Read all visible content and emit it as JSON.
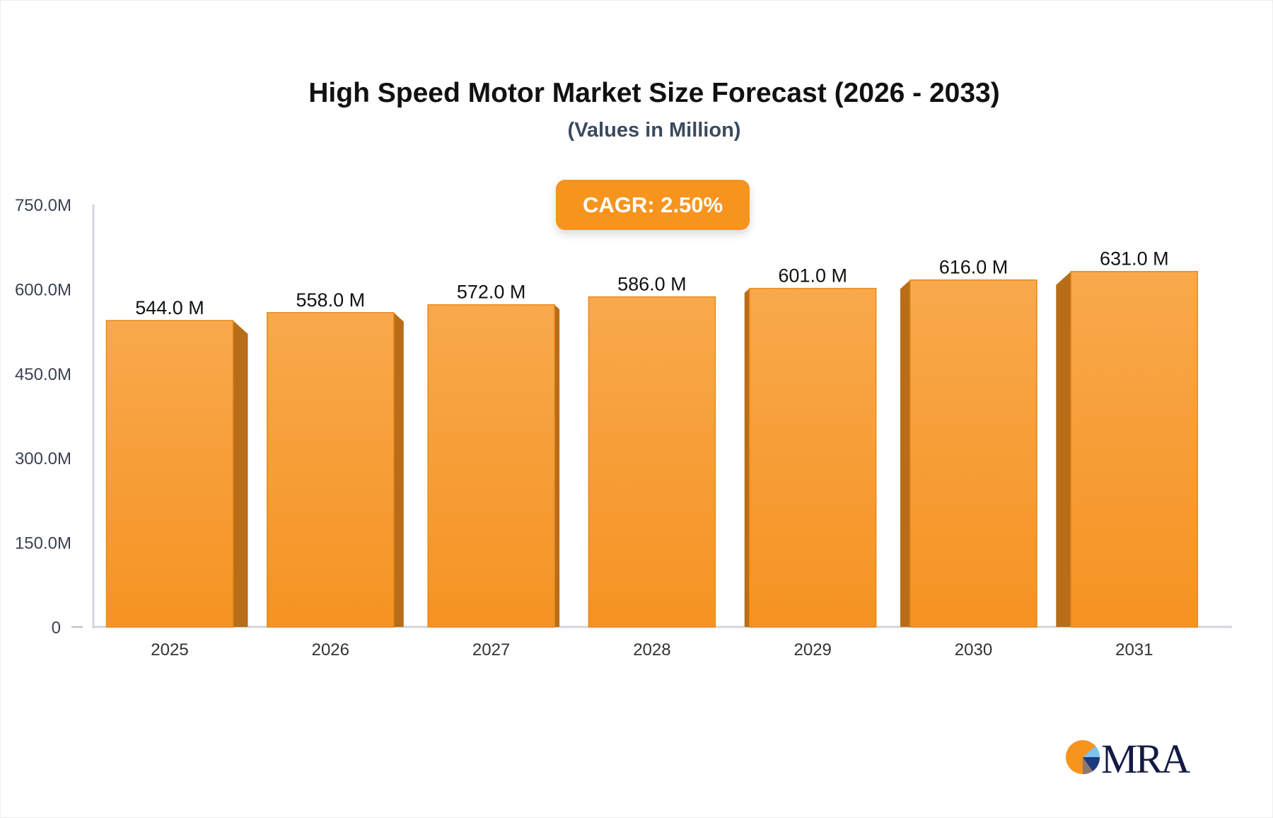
{
  "chart_data": {
    "type": "bar",
    "title": "High Speed Motor Market Size Forecast (2026 - 2033)",
    "subtitle": "(Values in Million)",
    "categories": [
      "2025",
      "2026",
      "2027",
      "2028",
      "2029",
      "2030",
      "2031"
    ],
    "values": [
      544.0,
      558.0,
      572.0,
      586.0,
      601.0,
      616.0,
      631.0
    ],
    "data_labels": [
      "544.0 M",
      "558.0 M",
      "572.0 M",
      "586.0 M",
      "601.0 M",
      "616.0 M",
      "631.0 M"
    ],
    "ylim": [
      0,
      750
    ],
    "yticks": [
      0,
      150,
      300,
      450,
      600,
      750
    ],
    "ytick_labels": [
      "0",
      "150.0M",
      "300.0M",
      "450.0M",
      "600.0M",
      "750.0M"
    ],
    "grid": false,
    "bar_color": "#f7941d",
    "bar_side_color": "#b96d19"
  },
  "badge": {
    "cagr": "CAGR: 2.50%"
  },
  "logo": {
    "text": "MRA"
  }
}
